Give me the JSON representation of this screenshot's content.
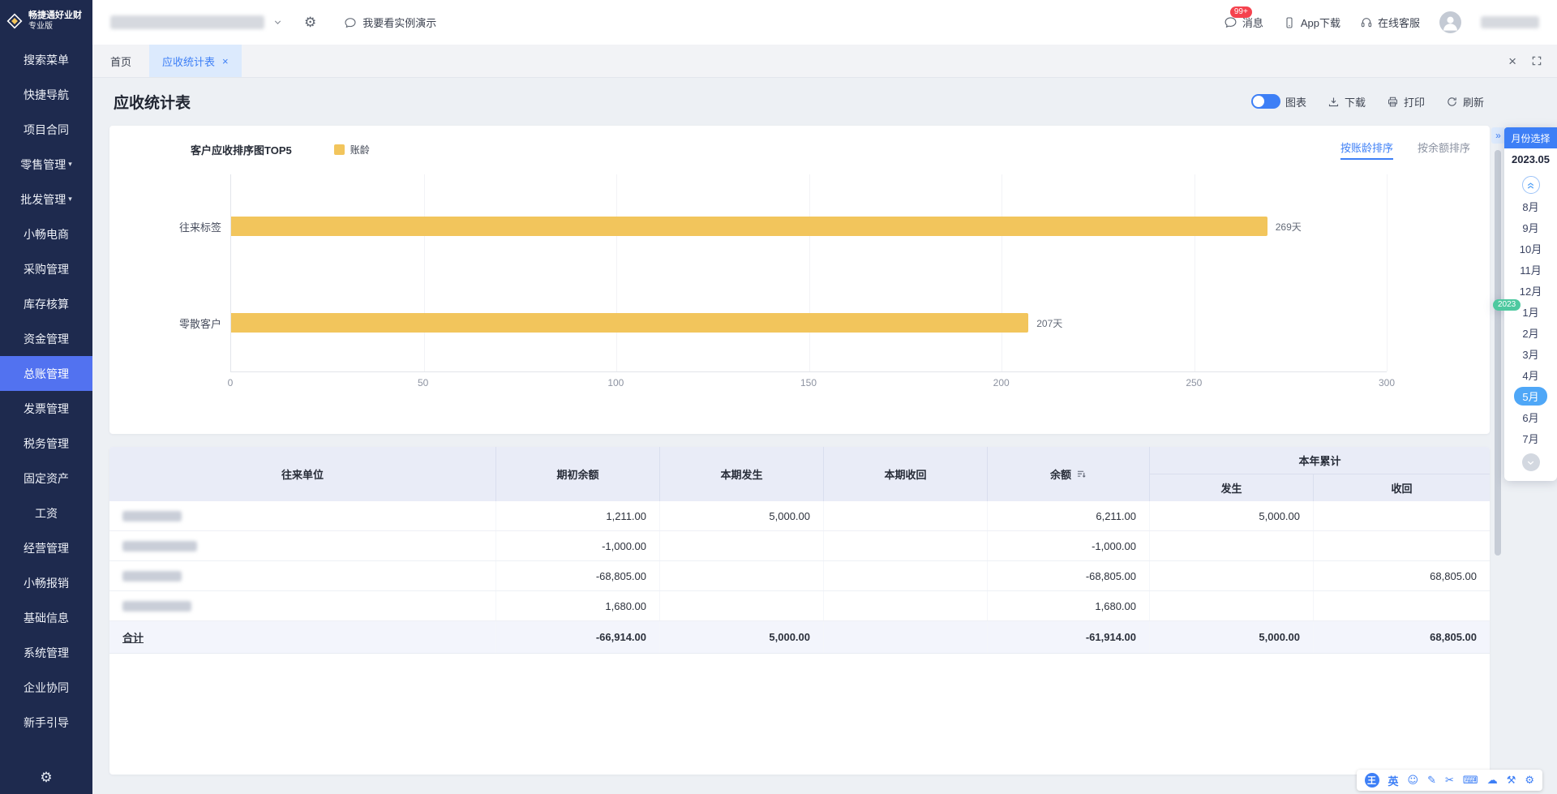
{
  "brand": {
    "name": "畅捷通好业财",
    "edition": "专业版"
  },
  "topbar": {
    "demo_link": "我要看实例演示",
    "message_label": "消息",
    "message_badge": "99+",
    "app_download_label": "App下载",
    "online_service_label": "在线客服"
  },
  "sidebar": {
    "items": [
      {
        "label": "搜索菜单"
      },
      {
        "label": "快捷导航"
      },
      {
        "label": "项目合同"
      },
      {
        "label": "零售管理",
        "expandable": true
      },
      {
        "label": "批发管理",
        "expandable": true
      },
      {
        "label": "小畅电商"
      },
      {
        "label": "采购管理"
      },
      {
        "label": "库存核算"
      },
      {
        "label": "资金管理"
      },
      {
        "label": "总账管理",
        "active": true
      },
      {
        "label": "发票管理"
      },
      {
        "label": "税务管理"
      },
      {
        "label": "固定资产"
      },
      {
        "label": "工资"
      },
      {
        "label": "经营管理"
      },
      {
        "label": "小畅报销"
      },
      {
        "label": "基础信息"
      },
      {
        "label": "系统管理"
      },
      {
        "label": "企业协同"
      },
      {
        "label": "新手引导"
      }
    ]
  },
  "tabs": {
    "home": "首页",
    "active_tab": "应收统计表",
    "close_glyph": "×"
  },
  "page": {
    "title": "应收统计表",
    "chart_toggle_label": "图表",
    "download_label": "下载",
    "print_label": "打印",
    "refresh_label": "刷新"
  },
  "chart_panel": {
    "sort_by_aging": "按账龄排序",
    "sort_by_balance": "按余额排序",
    "collapse_glyph": "»"
  },
  "chart_data": {
    "type": "bar",
    "orientation": "horizontal",
    "title": "客户应收排序图TOP5",
    "legend": [
      {
        "label": "账龄",
        "color": "#F2C55C"
      }
    ],
    "categories": [
      "往来标签",
      "零散客户"
    ],
    "values": [
      269,
      207
    ],
    "value_labels": [
      "269天",
      "207天"
    ],
    "unit": "天",
    "xlim": [
      0,
      300
    ],
    "xticks": [
      "0",
      "50",
      "100",
      "150",
      "200",
      "250",
      "300"
    ],
    "bar_color": "#F2C55C",
    "grid": true,
    "legend_position": "top-left"
  },
  "table": {
    "headers": {
      "unit": "往来单位",
      "opening_balance": "期初余额",
      "current_occurred": "本期发生",
      "current_received": "本期收回",
      "balance": "余额",
      "year_total_group": "本年累计",
      "year_occurred": "发生",
      "year_received": "收回"
    },
    "rows": [
      {
        "opening": "1,211.00",
        "occurred": "5,000.00",
        "received": "",
        "balance": "6,211.00",
        "y_occurred": "5,000.00",
        "y_received": ""
      },
      {
        "opening": "-1,000.00",
        "occurred": "",
        "received": "",
        "balance": "-1,000.00",
        "y_occurred": "",
        "y_received": ""
      },
      {
        "opening": "-68,805.00",
        "occurred": "",
        "received": "",
        "balance": "-68,805.00",
        "y_occurred": "",
        "y_received": "68,805.00"
      },
      {
        "opening": "1,680.00",
        "occurred": "",
        "received": "",
        "balance": "1,680.00",
        "y_occurred": "",
        "y_received": ""
      }
    ],
    "total_row": {
      "label": "合计",
      "opening": "-66,914.00",
      "occurred": "5,000.00",
      "received": "",
      "balance": "-61,914.00",
      "y_occurred": "5,000.00",
      "y_received": "68,805.00"
    }
  },
  "month_panel": {
    "title": "月份选择",
    "current": "2023.05",
    "year_badge": "2023",
    "months": [
      "8月",
      "9月",
      "10月",
      "11月",
      "12月",
      "1月",
      "2月",
      "3月",
      "4月",
      "5月",
      "6月",
      "7月"
    ],
    "active_index": 9
  },
  "ime": {
    "logo": "王",
    "lang": "英"
  },
  "colors": {
    "accent_blue": "#3D7FF6",
    "bar_gold": "#F2C55C",
    "sidebar_bg": "#1E2A4E",
    "sidebar_active": "#5272F0",
    "active_month_blue": "#4FA7F7",
    "year_badge_green": "#4EC9A0",
    "badge_red": "#F5424E",
    "table_header_bg": "#E9ECF7",
    "total_row_bg": "#F3F5FC"
  }
}
